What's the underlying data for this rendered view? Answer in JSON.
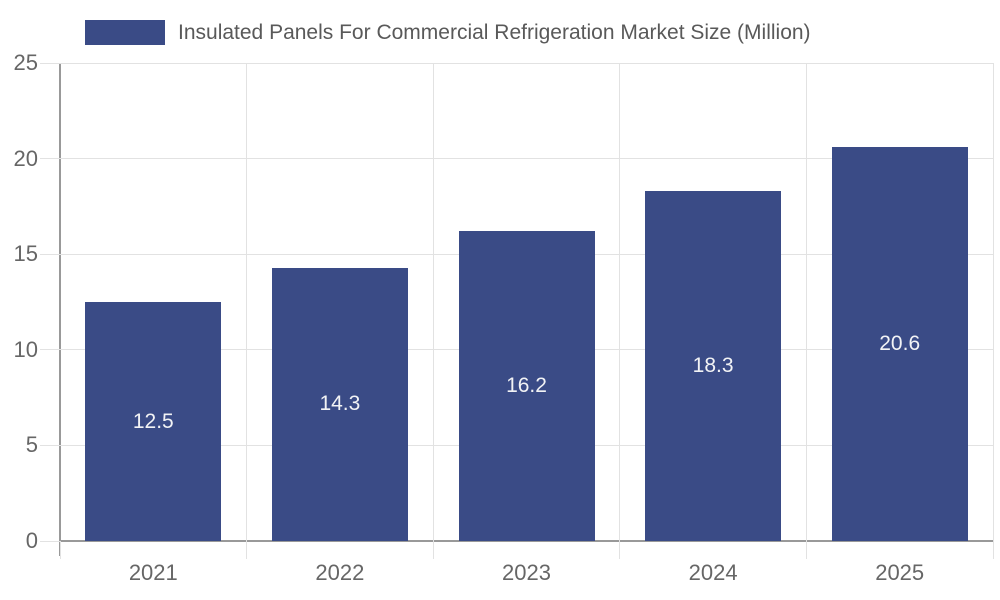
{
  "chart_data": {
    "type": "bar",
    "legend": "Insulated Panels For Commercial Refrigeration Market Size (Million)",
    "legend_position": "top-left",
    "categories": [
      "2021",
      "2022",
      "2023",
      "2024",
      "2025"
    ],
    "values": [
      12.5,
      14.3,
      16.2,
      18.3,
      20.6
    ],
    "value_labels": [
      "12.5",
      "14.3",
      "16.2",
      "18.3",
      "20.6"
    ],
    "title": "",
    "xlabel": "",
    "ylabel": "",
    "ylim": [
      0,
      25
    ],
    "yticks": [
      0,
      5,
      10,
      15,
      20,
      25
    ],
    "grid": true,
    "colors": {
      "bar": "#3A4B86",
      "grid": "#e2e2e2",
      "axis": "#999999",
      "tick_text": "#666666",
      "legend_text": "#595959",
      "value_label": "#f2f3f5",
      "background": "#ffffff"
    }
  }
}
